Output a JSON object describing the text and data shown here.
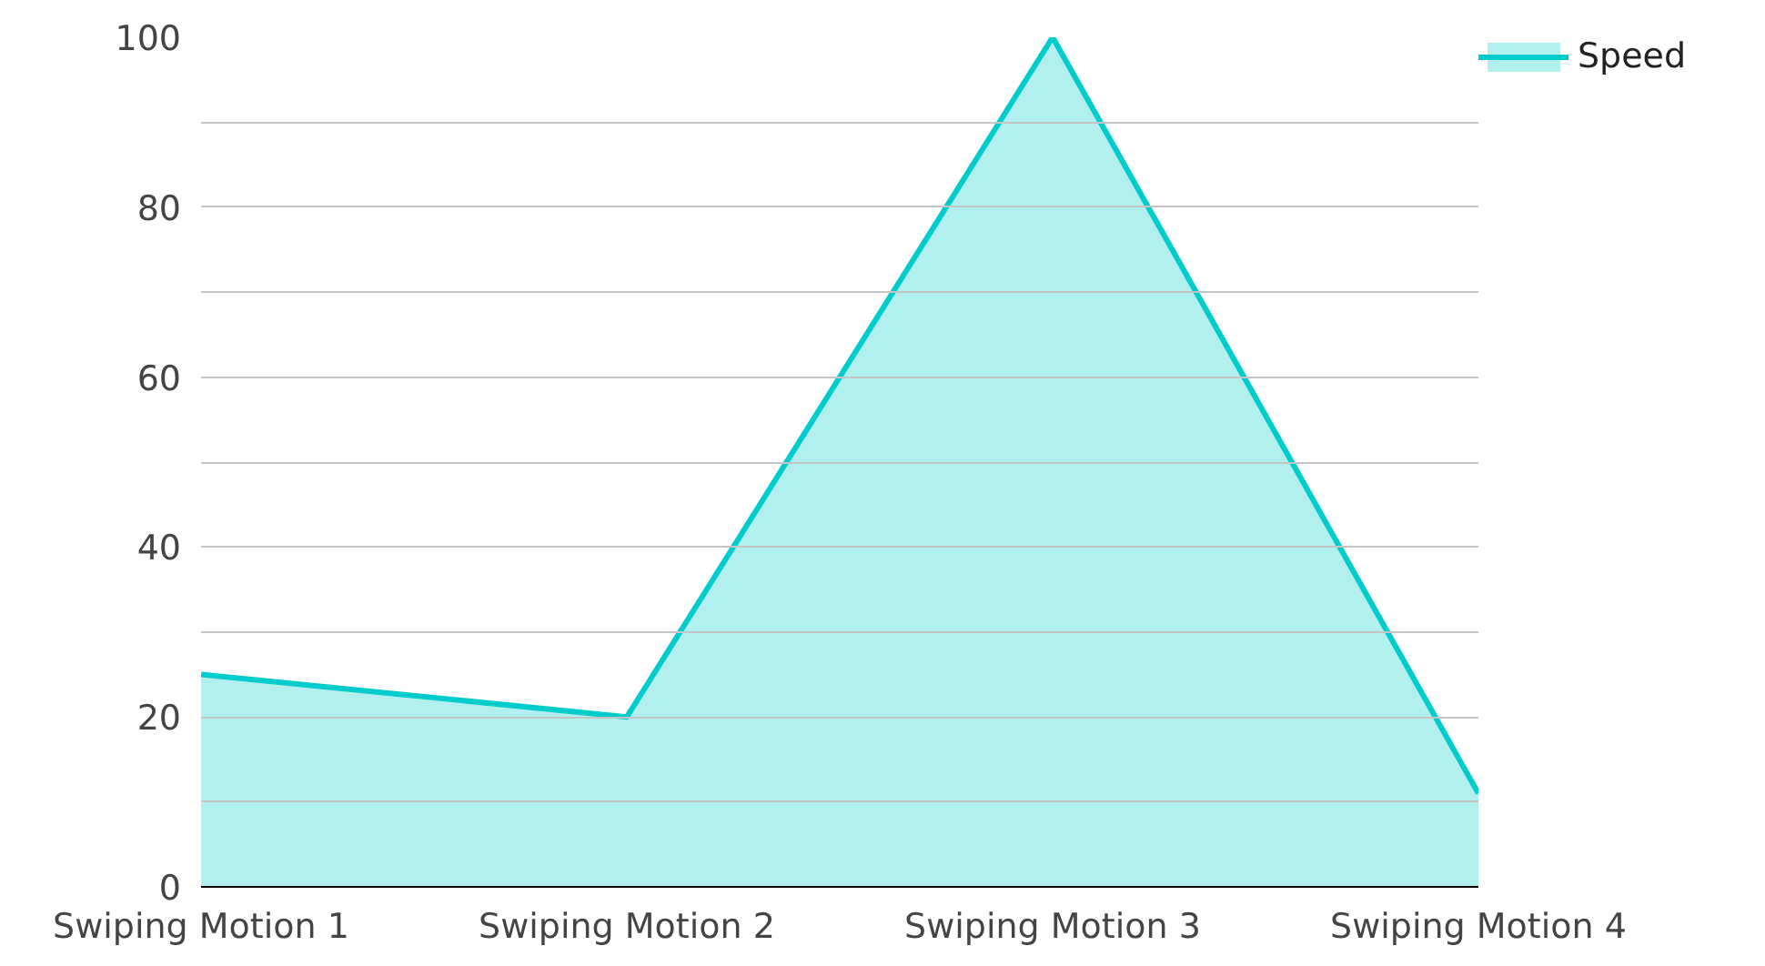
{
  "chart_data": {
    "type": "area",
    "categories": [
      "Swiping Motion 1",
      "Swiping Motion 2",
      "Swiping Motion 3",
      "Swiping Motion 4"
    ],
    "series": [
      {
        "name": "Speed",
        "color": "#00cccc",
        "values": [
          25,
          20,
          100,
          11
        ]
      }
    ],
    "ylim": [
      0,
      100
    ],
    "yticks": [
      0,
      {
        "value": 10,
        "label": null
      },
      20,
      {
        "value": 30,
        "label": null
      },
      40,
      {
        "value": 50,
        "label": null
      },
      60,
      {
        "value": 70,
        "label": null
      },
      80,
      {
        "value": 90,
        "label": null
      },
      100
    ],
    "grid": "y",
    "legend": "top right"
  }
}
